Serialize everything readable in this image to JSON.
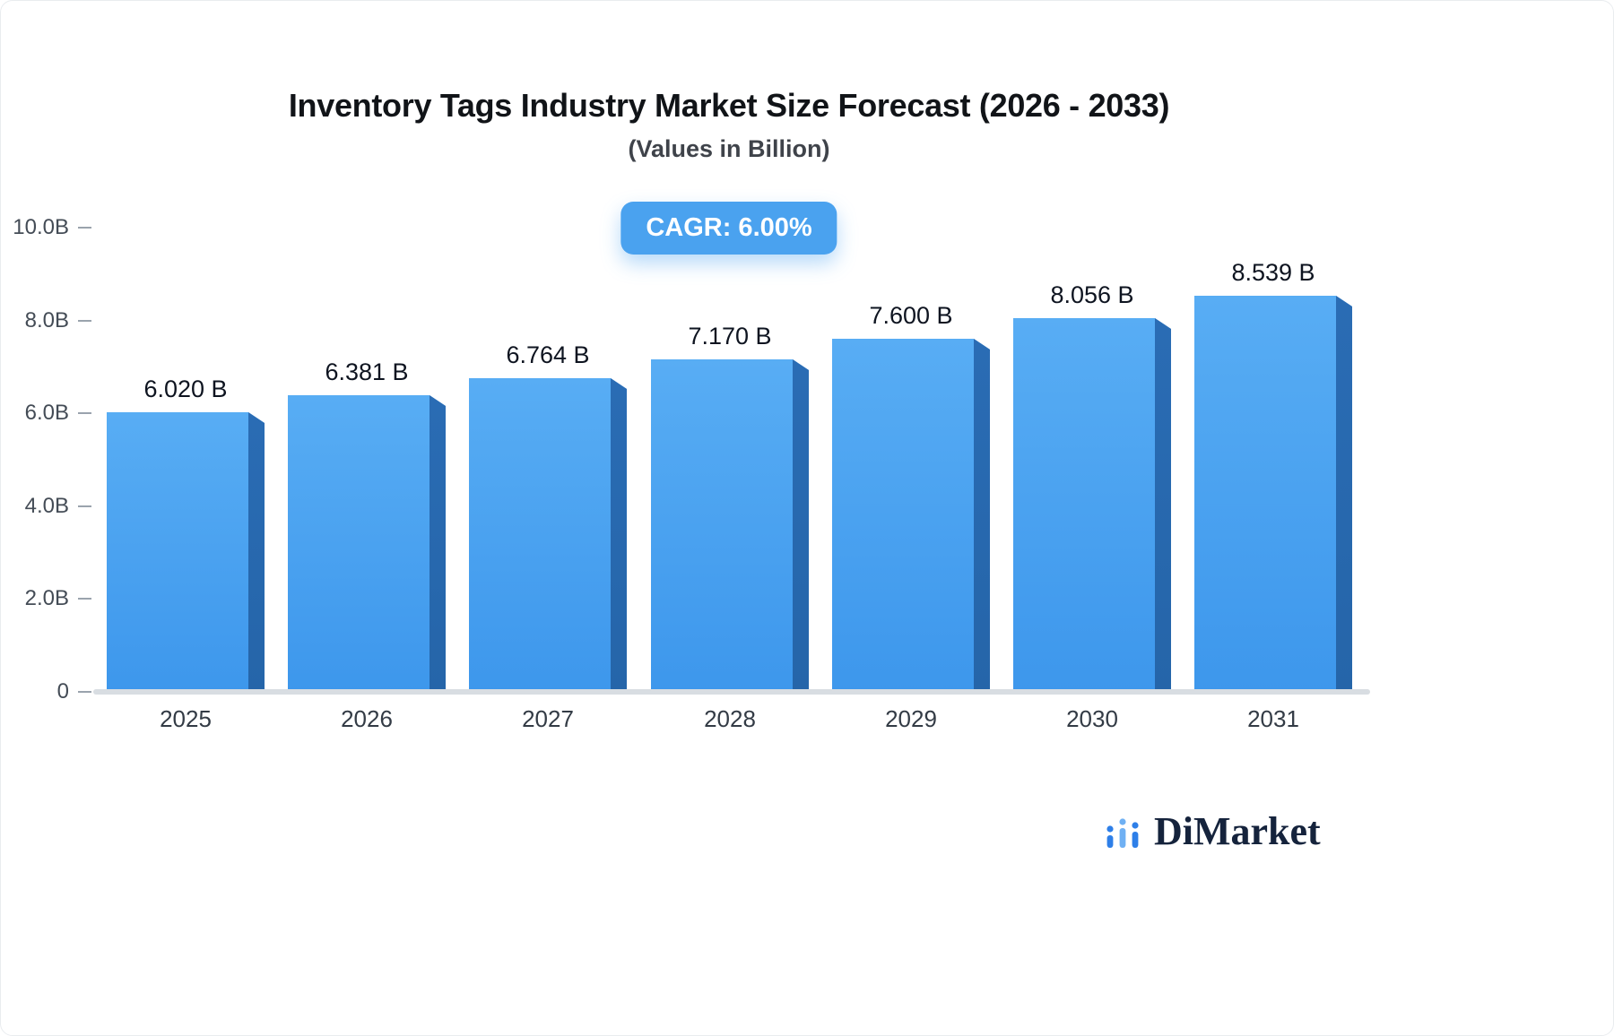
{
  "header": {
    "title": "Inventory Tags Industry Market Size Forecast (2026 - 2033)",
    "subtitle": "(Values in Billion)",
    "cagr_badge": "CAGR: 6.00%"
  },
  "chart_data": {
    "type": "bar",
    "title": "Inventory Tags Industry Market Size Forecast (2026 - 2033)",
    "subtitle": "(Values in Billion)",
    "categories": [
      "2025",
      "2026",
      "2027",
      "2028",
      "2029",
      "2030",
      "2031"
    ],
    "values": [
      6.02,
      6.381,
      6.764,
      7.17,
      7.6,
      8.056,
      8.539
    ],
    "value_labels": [
      "6.020 B",
      "6.381 B",
      "6.764 B",
      "7.170 B",
      "7.600 B",
      "8.056 B",
      "8.539 B"
    ],
    "xlabel": "",
    "ylabel": "",
    "ylim": [
      0,
      10
    ],
    "ytick_values": [
      0,
      2,
      4,
      6,
      8,
      10
    ],
    "ytick_labels": [
      "0",
      "2.0B",
      "4.0B",
      "6.0B",
      "8.0B",
      "10.0B"
    ],
    "grid": false,
    "legend": false,
    "annotations": [
      "CAGR: 6.00%"
    ]
  },
  "colors": {
    "bar_face_top": "#58adf4",
    "bar_face_bottom": "#3d97ec",
    "bar_side": "#2565a9",
    "badge_background": "#4aa2ef",
    "badge_text": "#ffffff",
    "baseline": "#d8dde2",
    "brand_blue": "#2e7fe8",
    "brand_text": "#15233c"
  },
  "branding": {
    "logo_text": "DiMarket",
    "logo_icon": "bar-chart-icon"
  }
}
